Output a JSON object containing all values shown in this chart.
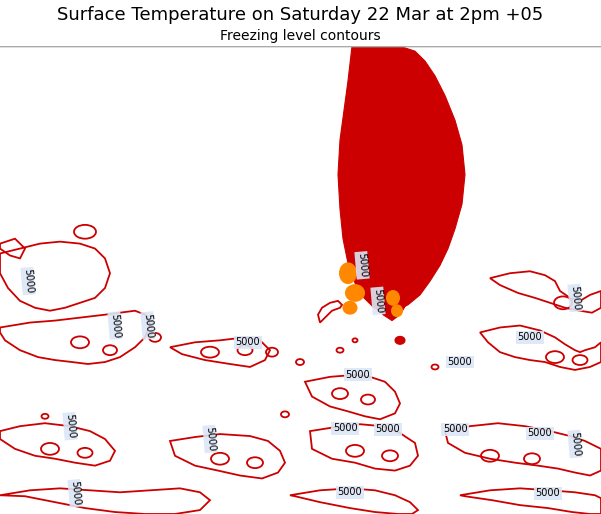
{
  "title": "Surface Temperature on Saturday 22 Mar at 2pm +05",
  "subtitle": "Freezing level contours",
  "map_bg": "#ccd8f0",
  "title_area_color": "#ffffff",
  "title_fontsize": 13,
  "subtitle_fontsize": 10,
  "contour_color": "#cc0000",
  "land_red": "#cc0000",
  "land_orange": "#ff8800",
  "lw": 1.3,
  "label_fontsize": 7,
  "label_bg": "#dce6f5"
}
